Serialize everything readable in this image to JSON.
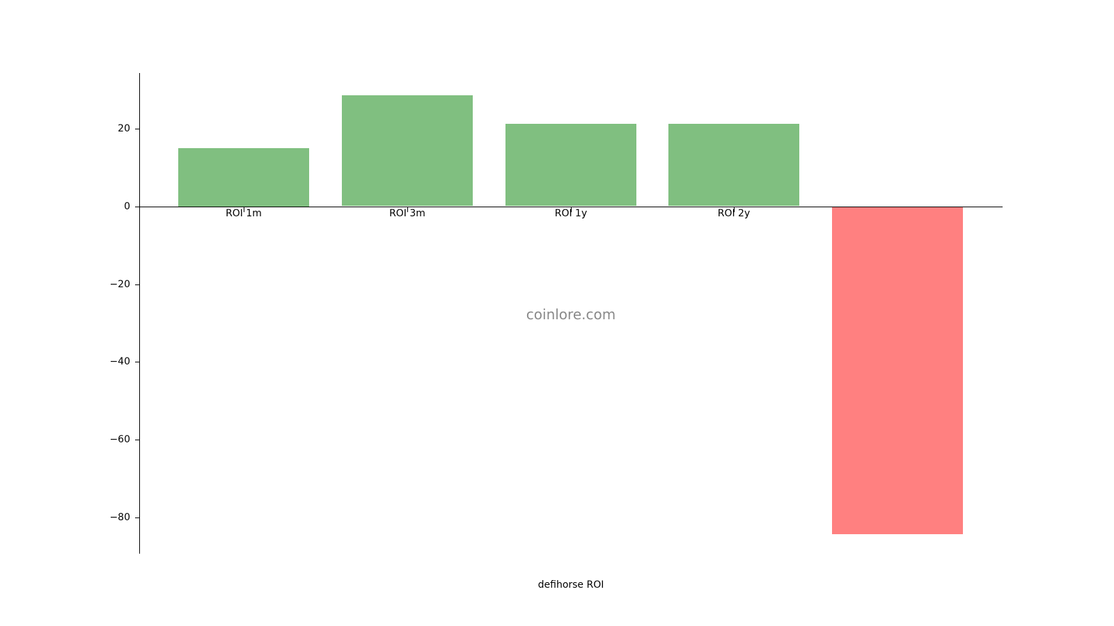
{
  "watermark": {
    "text": "coinlore.com",
    "color": "#8a8a8a"
  },
  "chart_data": {
    "type": "bar",
    "title": "",
    "xlabel": "defihorse ROI",
    "ylabel": "",
    "categories": [
      "ROI 1m",
      "ROI 3m",
      "ROI 1y",
      "ROI 2y",
      ""
    ],
    "values": [
      15,
      28.4,
      21.1,
      21.1,
      -84
    ],
    "positive_color": "#80bf80",
    "negative_color": "#ff8080",
    "axis_color": "#000000",
    "yticks": [
      {
        "value": 20,
        "label": "20"
      },
      {
        "value": 0,
        "label": "0"
      },
      {
        "value": -20,
        "label": "−20"
      },
      {
        "value": -40,
        "label": "−40"
      },
      {
        "value": -60,
        "label": "−60"
      },
      {
        "value": -80,
        "label": "−80"
      }
    ],
    "ylim": [
      -89.2,
      34.2
    ],
    "baseline": 0,
    "grid": false,
    "legend_position": "none"
  }
}
